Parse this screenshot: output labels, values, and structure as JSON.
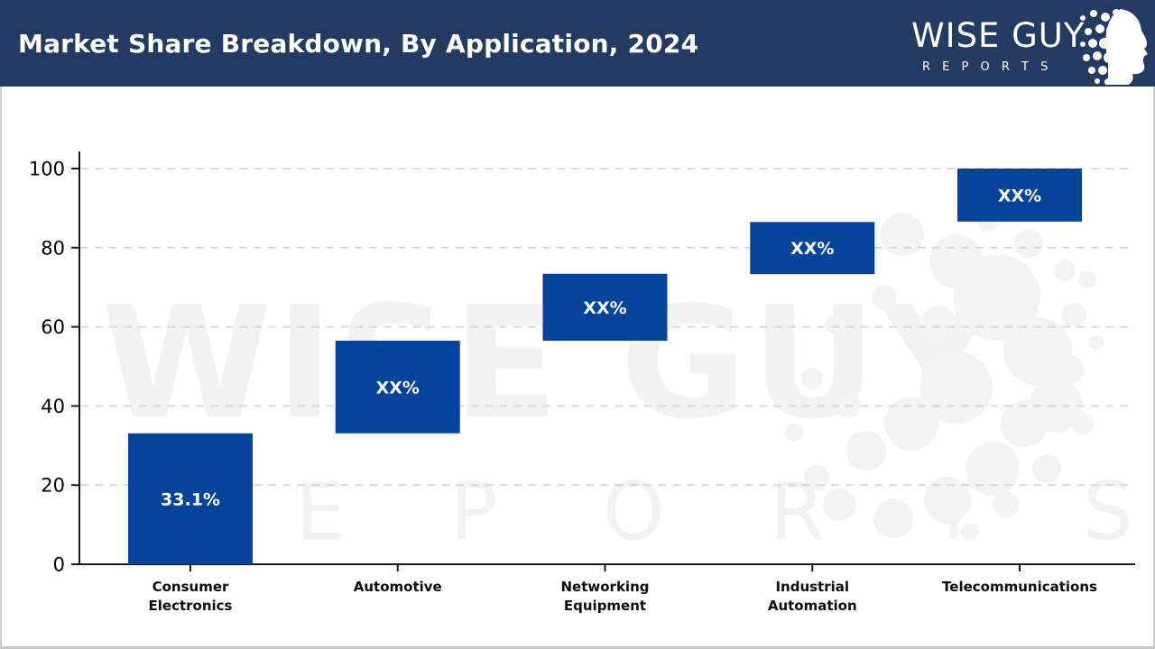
{
  "header": {
    "title": "Market Share Breakdown, By Application, 2024",
    "bg_color": "#233a63",
    "logo": {
      "line1": "WISE GUY",
      "line2": "R E P O R T S"
    }
  },
  "watermark": {
    "line1": "WISE GUY",
    "line2": "R E P O R T S"
  },
  "chart_data": {
    "type": "bar",
    "subtype": "waterfall",
    "title": "Market Share Breakdown, By Application, 2024",
    "xlabel": "",
    "ylabel": "",
    "ylim": [
      0,
      105
    ],
    "y_ticks": [
      0,
      20,
      40,
      60,
      80,
      100
    ],
    "grid": "dashed-horizontal",
    "legend": "none",
    "bar_color": "#04449c",
    "bar_label_color": "#ffffff",
    "categories": [
      "Consumer Electronics",
      "Automotive",
      "Networking Equipment",
      "Industrial Automation",
      "Telecommunications"
    ],
    "category_label_lines": [
      [
        "Consumer",
        "Electronics"
      ],
      [
        "Automotive"
      ],
      [
        "Networking",
        "Equipment"
      ],
      [
        "Industrial",
        "Automation"
      ],
      [
        "Telecommunications"
      ]
    ],
    "segments": [
      {
        "category": "Consumer Electronics",
        "start": 0,
        "end": 33.1,
        "label": "33.1%"
      },
      {
        "category": "Automotive",
        "start": 33.1,
        "end": 56.5,
        "label": "XX%"
      },
      {
        "category": "Networking Equipment",
        "start": 56.5,
        "end": 73.4,
        "label": "XX%"
      },
      {
        "category": "Industrial Automation",
        "start": 73.3,
        "end": 86.5,
        "label": "XX%"
      },
      {
        "category": "Telecommunications",
        "start": 86.6,
        "end": 100,
        "label": "XX%"
      }
    ]
  }
}
